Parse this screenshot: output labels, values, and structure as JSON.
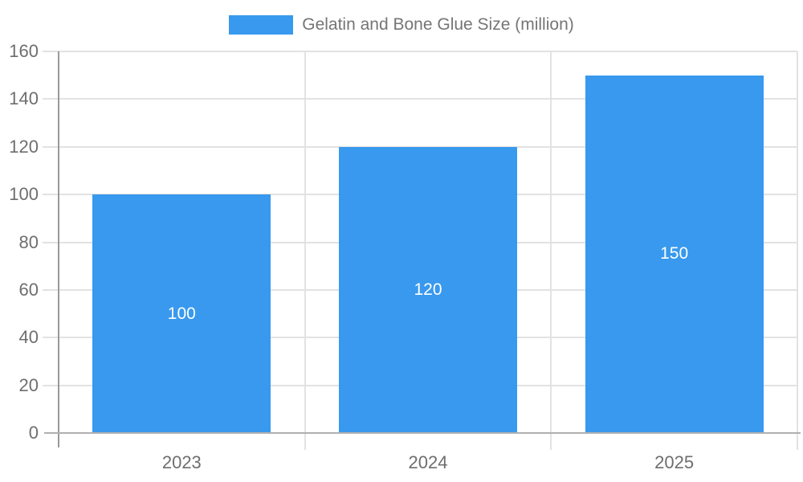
{
  "legend": {
    "label": "Gelatin and Bone Glue Size (million)"
  },
  "chart_data": {
    "type": "bar",
    "title": "Gelatin and Bone Glue Size (million)",
    "categories": [
      "2023",
      "2024",
      "2025"
    ],
    "series": [
      {
        "name": "Gelatin and Bone Glue Size (million)",
        "values": [
          100,
          120,
          150
        ],
        "data_labels": [
          "100",
          "120",
          "150"
        ]
      }
    ],
    "xlabel": "",
    "ylabel": "",
    "ylim": [
      0,
      160
    ],
    "ytick_step": 20,
    "yticks": [
      0,
      20,
      40,
      60,
      80,
      100,
      120,
      140,
      160
    ],
    "grid": true,
    "legend_position": "top-center",
    "data_label_position": "inside-center"
  },
  "colors": {
    "bar": "#3899ee",
    "grid": "#e2e2e2",
    "y_axis_line": "#999999",
    "x_axis_line": "#b0b0b0",
    "tick_label": "#6e6e6e",
    "legend_text": "#757575",
    "data_label": "#ffffff",
    "background": "#ffffff"
  }
}
